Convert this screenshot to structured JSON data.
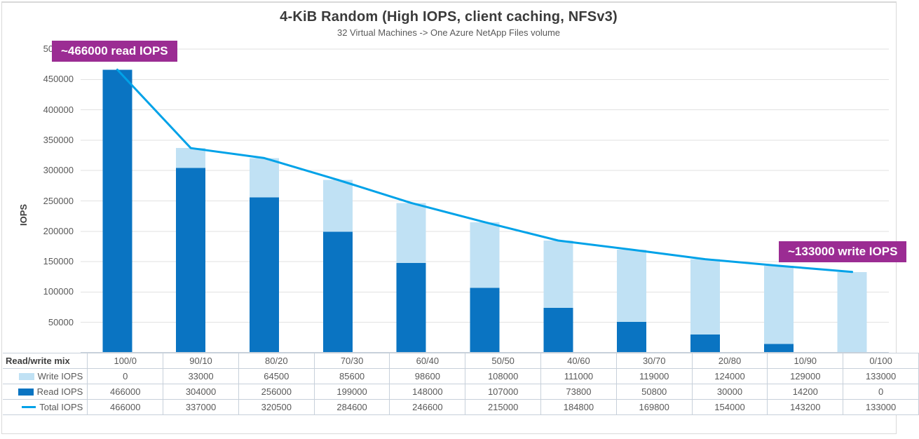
{
  "header": {
    "title": "4-KiB Random (High IOPS, client caching, NFSv3)",
    "subtitle": "32 Virtual Machines -> One Azure NetApp Files volume"
  },
  "annotations": {
    "read_peak": "~466000 read IOPS",
    "write_peak": "~133000 write IOPS"
  },
  "colors": {
    "annotation_bg": "#9b2c93",
    "bar_read": "#0a74c2",
    "bar_write": "#c0e1f4",
    "line_total": "#00a2e8",
    "gridline": "#e2e2e2",
    "axis_line": "#c7d0da",
    "table_border": "#c7d0da",
    "text_muted": "#595959",
    "text_dark": "#3f3f3f"
  },
  "table": {
    "row_header": "Read/write mix"
  },
  "chart_data": {
    "type": "bar",
    "subtype": "stacked-bars-with-total-line",
    "title": "4-KiB Random (High IOPS, client caching, NFSv3)",
    "subtitle": "32 Virtual Machines -> One Azure NetApp Files volume",
    "xlabel": "Read/write mix",
    "ylabel": "IOPS",
    "ylim": [
      0,
      500000
    ],
    "y_ticks": [
      500000,
      450000,
      400000,
      350000,
      300000,
      250000,
      200000,
      150000,
      100000,
      50000
    ],
    "grid": "horizontal",
    "legend_position": "table-row-headers",
    "categories": [
      "100/0",
      "90/10",
      "80/20",
      "70/30",
      "60/40",
      "50/50",
      "40/60",
      "30/70",
      "20/80",
      "10/90",
      "0/100"
    ],
    "stack_order": [
      "Read IOPS",
      "Write IOPS"
    ],
    "series": [
      {
        "name": "Write IOPS",
        "render": "bar",
        "color": "#c0e1f4",
        "values": [
          0,
          33000,
          64500,
          85600,
          98600,
          108000,
          111000,
          119000,
          124000,
          129000,
          133000
        ]
      },
      {
        "name": "Read IOPS",
        "render": "bar",
        "color": "#0a74c2",
        "values": [
          466000,
          304000,
          256000,
          199000,
          148000,
          107000,
          73800,
          50800,
          30000,
          14200,
          0
        ]
      },
      {
        "name": "Total IOPS",
        "render": "line",
        "color": "#00a2e8",
        "values": [
          466000,
          337000,
          320500,
          284600,
          246600,
          215000,
          184800,
          169800,
          154000,
          143200,
          133000
        ]
      }
    ]
  }
}
